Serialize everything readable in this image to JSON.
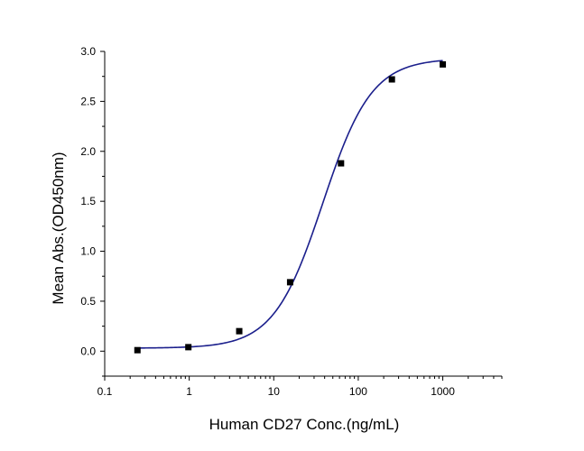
{
  "chart_data": {
    "type": "scatter",
    "title": "",
    "xlabel": "Human CD27 Conc.(ng/mL)",
    "ylabel": "Mean Abs.(OD450nm)",
    "xscale": "log",
    "xlim": [
      0.1,
      5000
    ],
    "ylim": [
      -0.25,
      3.0
    ],
    "xticks": [
      {
        "value": 0.1,
        "label": "0.1"
      },
      {
        "value": 1,
        "label": "1"
      },
      {
        "value": 10,
        "label": "10"
      },
      {
        "value": 100,
        "label": "100"
      },
      {
        "value": 1000,
        "label": "1000"
      }
    ],
    "yticks": [
      {
        "value": 0.0,
        "label": "0.0"
      },
      {
        "value": 0.5,
        "label": "0.5"
      },
      {
        "value": 1.0,
        "label": "1.0"
      },
      {
        "value": 1.5,
        "label": "1.5"
      },
      {
        "value": 2.0,
        "label": "2.0"
      },
      {
        "value": 2.5,
        "label": "2.5"
      },
      {
        "value": 3.0,
        "label": "3.0"
      }
    ],
    "series": [
      {
        "name": "Mean Abs.",
        "x": [
          0.244,
          0.977,
          3.906,
          15.625,
          62.5,
          250,
          1000
        ],
        "y": [
          0.01,
          0.04,
          0.2,
          0.69,
          1.88,
          2.72,
          2.87
        ],
        "marker": "square",
        "color": "#000000"
      }
    ],
    "fit": {
      "model": "4PL",
      "bottom": 0.03,
      "top": 2.93,
      "ec50": 38,
      "hill": 1.5,
      "color": "#1b1f8c"
    }
  }
}
